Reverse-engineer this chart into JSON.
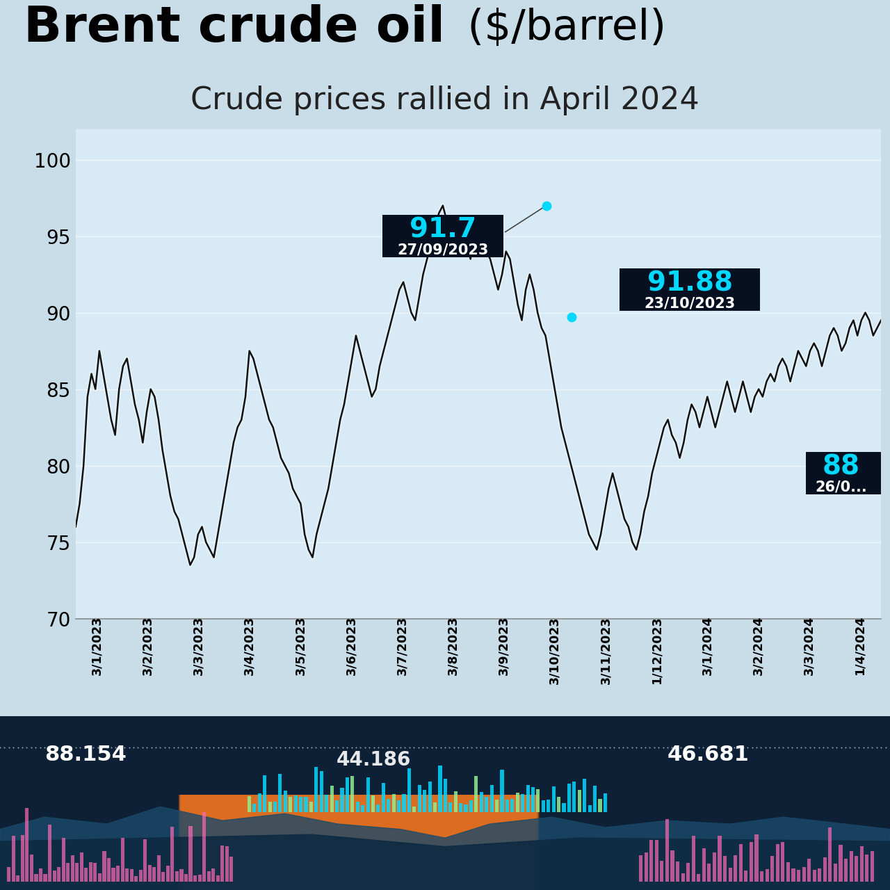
{
  "title_bold": "Brent crude oil",
  "title_normal": " ($/barrel)",
  "subtitle": "Crude prices rallied in April 2024",
  "bg_color": "#c8dde8",
  "chart_bg": "#d8eaf5",
  "line_color": "#111111",
  "line_width": 1.8,
  "ylim": [
    70,
    102
  ],
  "yticks": [
    70,
    75,
    80,
    85,
    90,
    95,
    100
  ],
  "x_labels": [
    "3/1/2023",
    "3/2/2023",
    "3/3/2023",
    "3/4/2023",
    "3/5/2023",
    "3/6/2023",
    "3/7/2023",
    "3/8/2023",
    "3/9/2023",
    "3/10/2023",
    "3/11/2023",
    "1/12/2023",
    "3/1/2024",
    "3/2/2024",
    "3/3/2024",
    "1/4/2024"
  ],
  "annotation1_value": "91.7",
  "annotation1_date": "27/09/2023",
  "annotation2_value": "91.88",
  "annotation2_date": "23/10/2023",
  "annotation3_value": "88",
  "annotation3_date": "26/0...",
  "cyan_color": "#00d8ff",
  "annotation_bg": "#061020",
  "prices": [
    76.0,
    77.5,
    80.0,
    84.5,
    86.0,
    85.0,
    87.5,
    86.0,
    84.5,
    83.0,
    82.0,
    85.0,
    86.5,
    87.0,
    85.5,
    84.0,
    83.0,
    81.5,
    83.5,
    85.0,
    84.5,
    83.0,
    81.0,
    79.5,
    78.0,
    77.0,
    76.5,
    75.5,
    74.5,
    73.5,
    74.0,
    75.5,
    76.0,
    75.0,
    74.5,
    74.0,
    75.5,
    77.0,
    78.5,
    80.0,
    81.5,
    82.5,
    83.0,
    84.5,
    87.5,
    87.0,
    86.0,
    85.0,
    84.0,
    83.0,
    82.5,
    81.5,
    80.5,
    80.0,
    79.5,
    78.5,
    78.0,
    77.5,
    75.5,
    74.5,
    74.0,
    75.5,
    76.5,
    77.5,
    78.5,
    80.0,
    81.5,
    83.0,
    84.0,
    85.5,
    87.0,
    88.5,
    87.5,
    86.5,
    85.5,
    84.5,
    85.0,
    86.5,
    87.5,
    88.5,
    89.5,
    90.5,
    91.5,
    92.0,
    91.0,
    90.0,
    89.5,
    91.0,
    92.5,
    93.5,
    94.5,
    95.5,
    96.5,
    97.0,
    96.0,
    95.0,
    94.5,
    96.0,
    95.5,
    94.5,
    93.5,
    95.0,
    96.0,
    95.0,
    94.0,
    93.5,
    92.5,
    91.5,
    92.5,
    94.0,
    93.5,
    92.0,
    90.5,
    89.5,
    91.5,
    92.5,
    91.5,
    90.0,
    89.0,
    88.5,
    87.0,
    85.5,
    84.0,
    82.5,
    81.5,
    80.5,
    79.5,
    78.5,
    77.5,
    76.5,
    75.5,
    75.0,
    74.5,
    75.5,
    77.0,
    78.5,
    79.5,
    78.5,
    77.5,
    76.5,
    76.0,
    75.0,
    74.5,
    75.5,
    77.0,
    78.0,
    79.5,
    80.5,
    81.5,
    82.5,
    83.0,
    82.0,
    81.5,
    80.5,
    81.5,
    83.0,
    84.0,
    83.5,
    82.5,
    83.5,
    84.5,
    83.5,
    82.5,
    83.5,
    84.5,
    85.5,
    84.5,
    83.5,
    84.5,
    85.5,
    84.5,
    83.5,
    84.5,
    85.0,
    84.5,
    85.5,
    86.0,
    85.5,
    86.5,
    87.0,
    86.5,
    85.5,
    86.5,
    87.5,
    87.0,
    86.5,
    87.5,
    88.0,
    87.5,
    86.5,
    87.5,
    88.5,
    89.0,
    88.5,
    87.5,
    88.0,
    89.0,
    89.5,
    88.5,
    89.5,
    90.0,
    89.5,
    88.5,
    89.0,
    89.5
  ],
  "bottom_values": [
    "88.154",
    "44.186",
    "46.681"
  ],
  "bottom_bar_color_main": "#00d8ff",
  "bottom_bar_color_green": "#90ee90",
  "bottom_bar_color_pink": "#ff69b4"
}
